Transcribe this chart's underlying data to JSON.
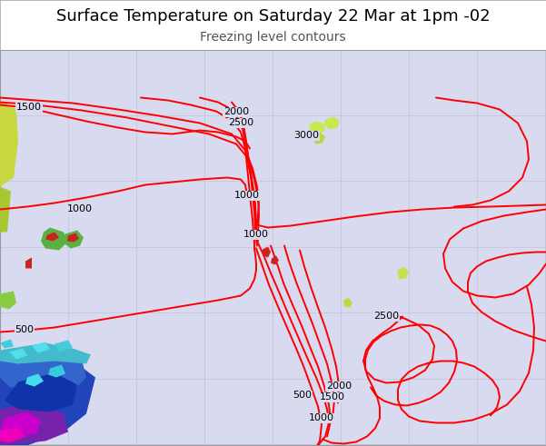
{
  "title": "Surface Temperature on Saturday 22 Mar at 1pm -02",
  "subtitle": "Freezing level contours",
  "title_fontsize": 13,
  "subtitle_fontsize": 10,
  "bg_color": "#d8daf0",
  "contour_color": "#ff0000",
  "contour_lw": 1.4,
  "label_fontsize": 8,
  "figsize": [
    6.01,
    4.91
  ],
  "dpi": 100,
  "grid_color": "#c0c2d8",
  "title_box_color": "#ffffff",
  "border_color": "#999999"
}
